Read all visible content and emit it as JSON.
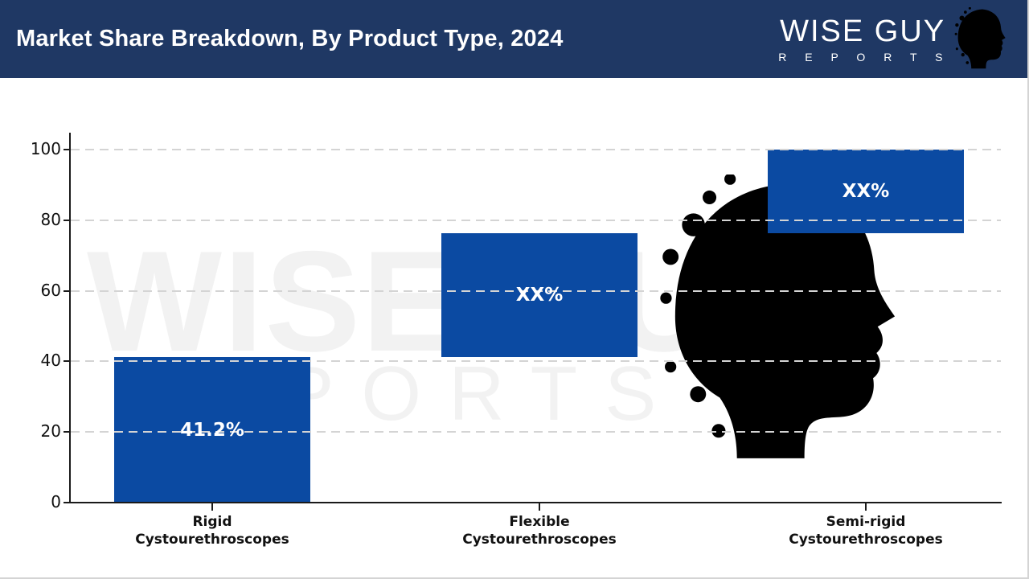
{
  "header": {
    "bg_color": "#1f3864",
    "title": "Market Share Breakdown, By Product Type, 2024",
    "logo": {
      "line1": "WISE GUY",
      "line2": "R E P O R T S"
    }
  },
  "watermark": {
    "line1": "WISE GUY",
    "line2": "REPORTS"
  },
  "chart_data": {
    "type": "bar",
    "variant": "floating-segment-waterfall",
    "title": "Market Share Breakdown, By Product Type, 2024",
    "categories": [
      "Rigid Cystourethroscopes",
      "Flexible Cystourethroscopes",
      "Semi-rigid Cystourethroscopes"
    ],
    "category_lines": [
      [
        "Rigid",
        "Cystourethroscopes"
      ],
      [
        "Flexible",
        "Cystourethroscopes"
      ],
      [
        "Semi-rigid",
        "Cystourethroscopes"
      ]
    ],
    "segments": [
      {
        "category": "Rigid Cystourethroscopes",
        "start": 0,
        "end": 41.2,
        "label": "41.2%"
      },
      {
        "category": "Flexible Cystourethroscopes",
        "start": 41.2,
        "end": 76.4,
        "label": "XX%"
      },
      {
        "category": "Semi-rigid Cystourethroscopes",
        "start": 76.4,
        "end": 100,
        "label": "XX%"
      }
    ],
    "ylim": [
      0,
      100
    ],
    "yticks": [
      0,
      20,
      40,
      60,
      80,
      100
    ],
    "grid": "horizontal-dashed",
    "grid_color": "#d4d4d4",
    "bar_color": "#0b4aa2",
    "bar_label_color": "#ffffff",
    "axis_color": "#1a1a1a",
    "xlabel": "",
    "ylabel": ""
  }
}
